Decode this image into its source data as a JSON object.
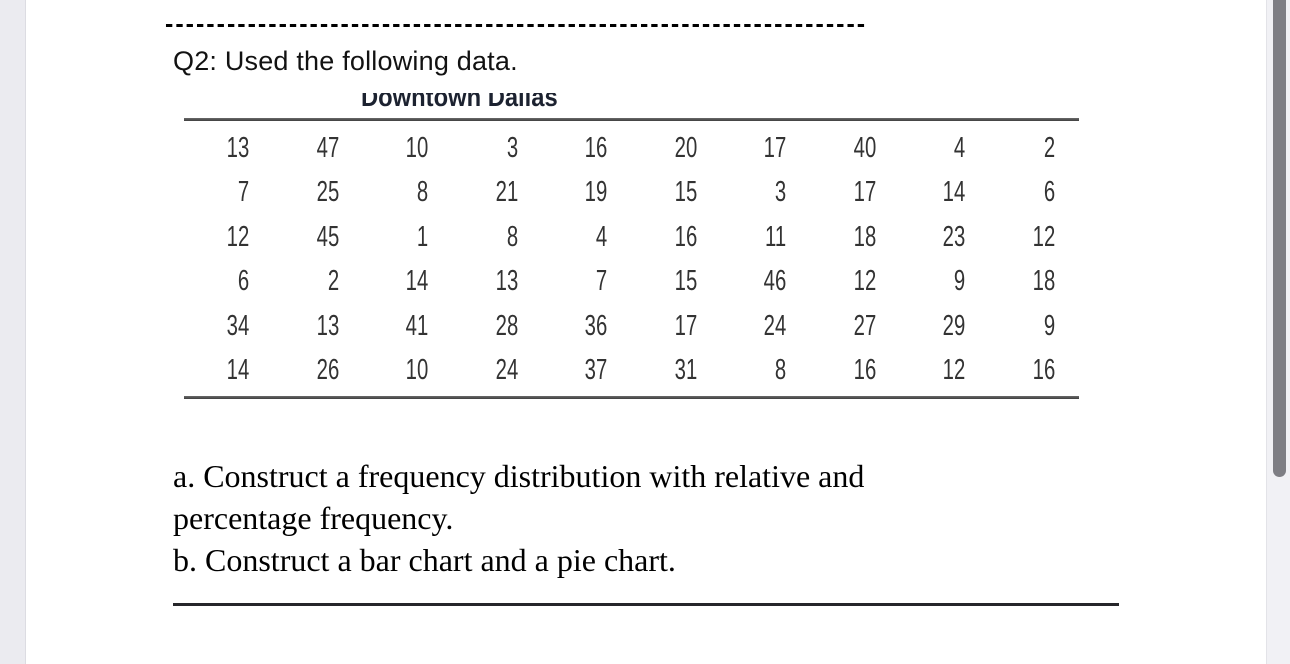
{
  "doc": {
    "divider_dashes": "--------------------------------------------------------------------",
    "question_title": "Q2: Used the following data.",
    "table": {
      "title": "Downtown Dallas",
      "rows": [
        [
          13,
          47,
          10,
          3,
          16,
          20,
          17,
          40,
          4,
          2
        ],
        [
          7,
          25,
          8,
          21,
          19,
          15,
          3,
          17,
          14,
          6
        ],
        [
          12,
          45,
          1,
          8,
          4,
          16,
          11,
          18,
          23,
          12
        ],
        [
          6,
          2,
          14,
          13,
          7,
          15,
          46,
          12,
          9,
          18
        ],
        [
          34,
          13,
          41,
          28,
          36,
          17,
          24,
          27,
          29,
          9
        ],
        [
          14,
          26,
          10,
          24,
          37,
          31,
          8,
          16,
          12,
          16
        ]
      ]
    },
    "tasks_text": "a. Construct a frequency distribution with relative and\npercentage frequency.\nb. Construct a bar chart and a pie chart."
  }
}
